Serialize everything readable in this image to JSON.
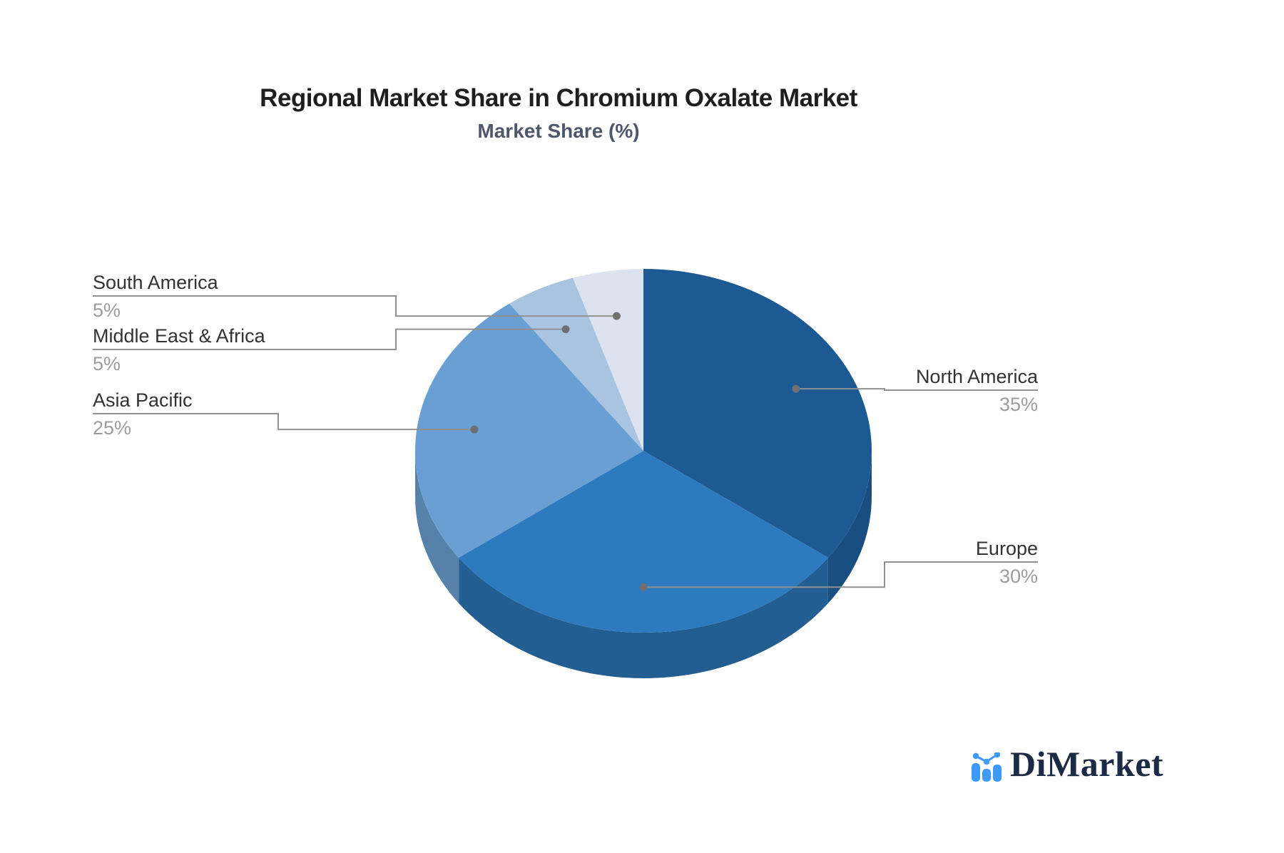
{
  "title": "Regional Market Share in Chromium Oxalate Market",
  "subtitle": "Market Share (%)",
  "logo": {
    "text": "DiMarket",
    "icon": "bar-chart-icon",
    "icon_color": "#3e99f7",
    "text_color": "#1c2b45"
  },
  "chart_data": {
    "type": "pie",
    "title": "Regional Market Share in Chromium Oxalate Market",
    "subtitle": "Market Share (%)",
    "unit": "%",
    "style": "3d-pie",
    "direction": "clockwise",
    "start_angle_deg": 0,
    "legend": "none",
    "labels": "callouts-with-leader-lines",
    "leader_line_color": "#919191",
    "leader_dot_color": "#6f6f6f",
    "label_name_color": "#333333",
    "label_value_color": "#9c9c9c",
    "slices": [
      {
        "label": "North America",
        "value": 35,
        "display": "35%",
        "color": "#1d5a94",
        "side_color": "#194e80"
      },
      {
        "label": "Europe",
        "value": 30,
        "display": "30%",
        "color": "#2e7abf",
        "side_color": "#235e92"
      },
      {
        "label": "Asia Pacific",
        "value": 25,
        "display": "25%",
        "color": "#6a9fd3",
        "side_color": "#5681ab"
      },
      {
        "label": "Middle East & Africa",
        "value": 5,
        "display": "5%",
        "color": "#a9c4e1",
        "side_color": "#8fa9c2"
      },
      {
        "label": "South America",
        "value": 5,
        "display": "5%",
        "color": "#dce3ee",
        "side_color": "#b9c3d2"
      }
    ]
  }
}
